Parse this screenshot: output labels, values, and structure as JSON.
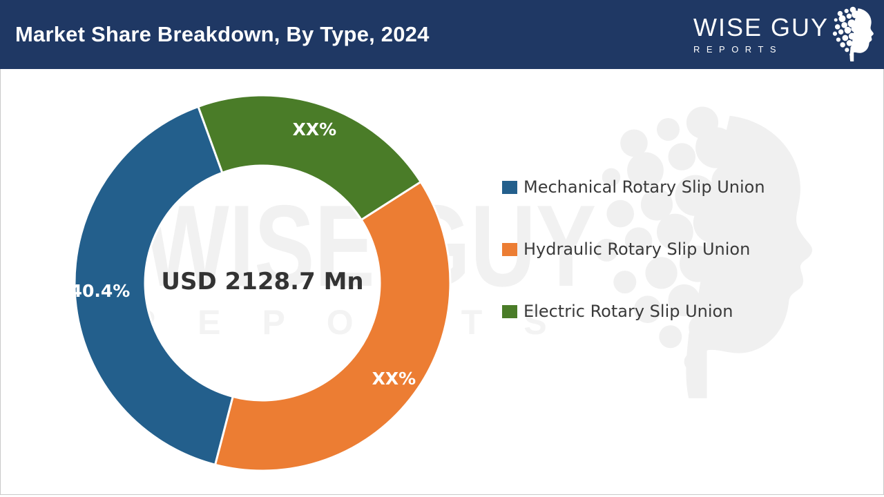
{
  "header": {
    "title": "Market Share Breakdown, By Type, 2024",
    "logo": {
      "line1": "WISE GUY",
      "line2": "REPORTS"
    }
  },
  "watermark": {
    "line1": "WISE GUY",
    "line2": "REPORTS"
  },
  "chart_data": {
    "type": "donut",
    "title": "Market Share Breakdown, By Type, 2024",
    "center_label": "USD 2128.7 Mn",
    "start_angle_deg": 110,
    "direction": "counterclockwise",
    "donut_hole_ratio": 0.625,
    "legend_position": "right",
    "grid": false,
    "segments": [
      {
        "label": "Mechanical Rotary Slip Union",
        "value_pct": 40.4,
        "display_label": "40.4%",
        "color": "#235F8C"
      },
      {
        "label": "Hydraulic Rotary Slip Union",
        "value_pct": 38.1,
        "display_label": "XX%",
        "color": "#EC7D33"
      },
      {
        "label": "Electric Rotary Slip Union",
        "value_pct": 21.5,
        "display_label": "XX%",
        "color": "#4A7C28"
      }
    ]
  },
  "colors": {
    "header_bg": "#1F3864",
    "slice_label_text": "#FFFFFF",
    "center_text": "#333333",
    "legend_text": "#3A3A3A",
    "watermark_gray": "#F1F1F1",
    "card_border": "#C9C9C9"
  }
}
